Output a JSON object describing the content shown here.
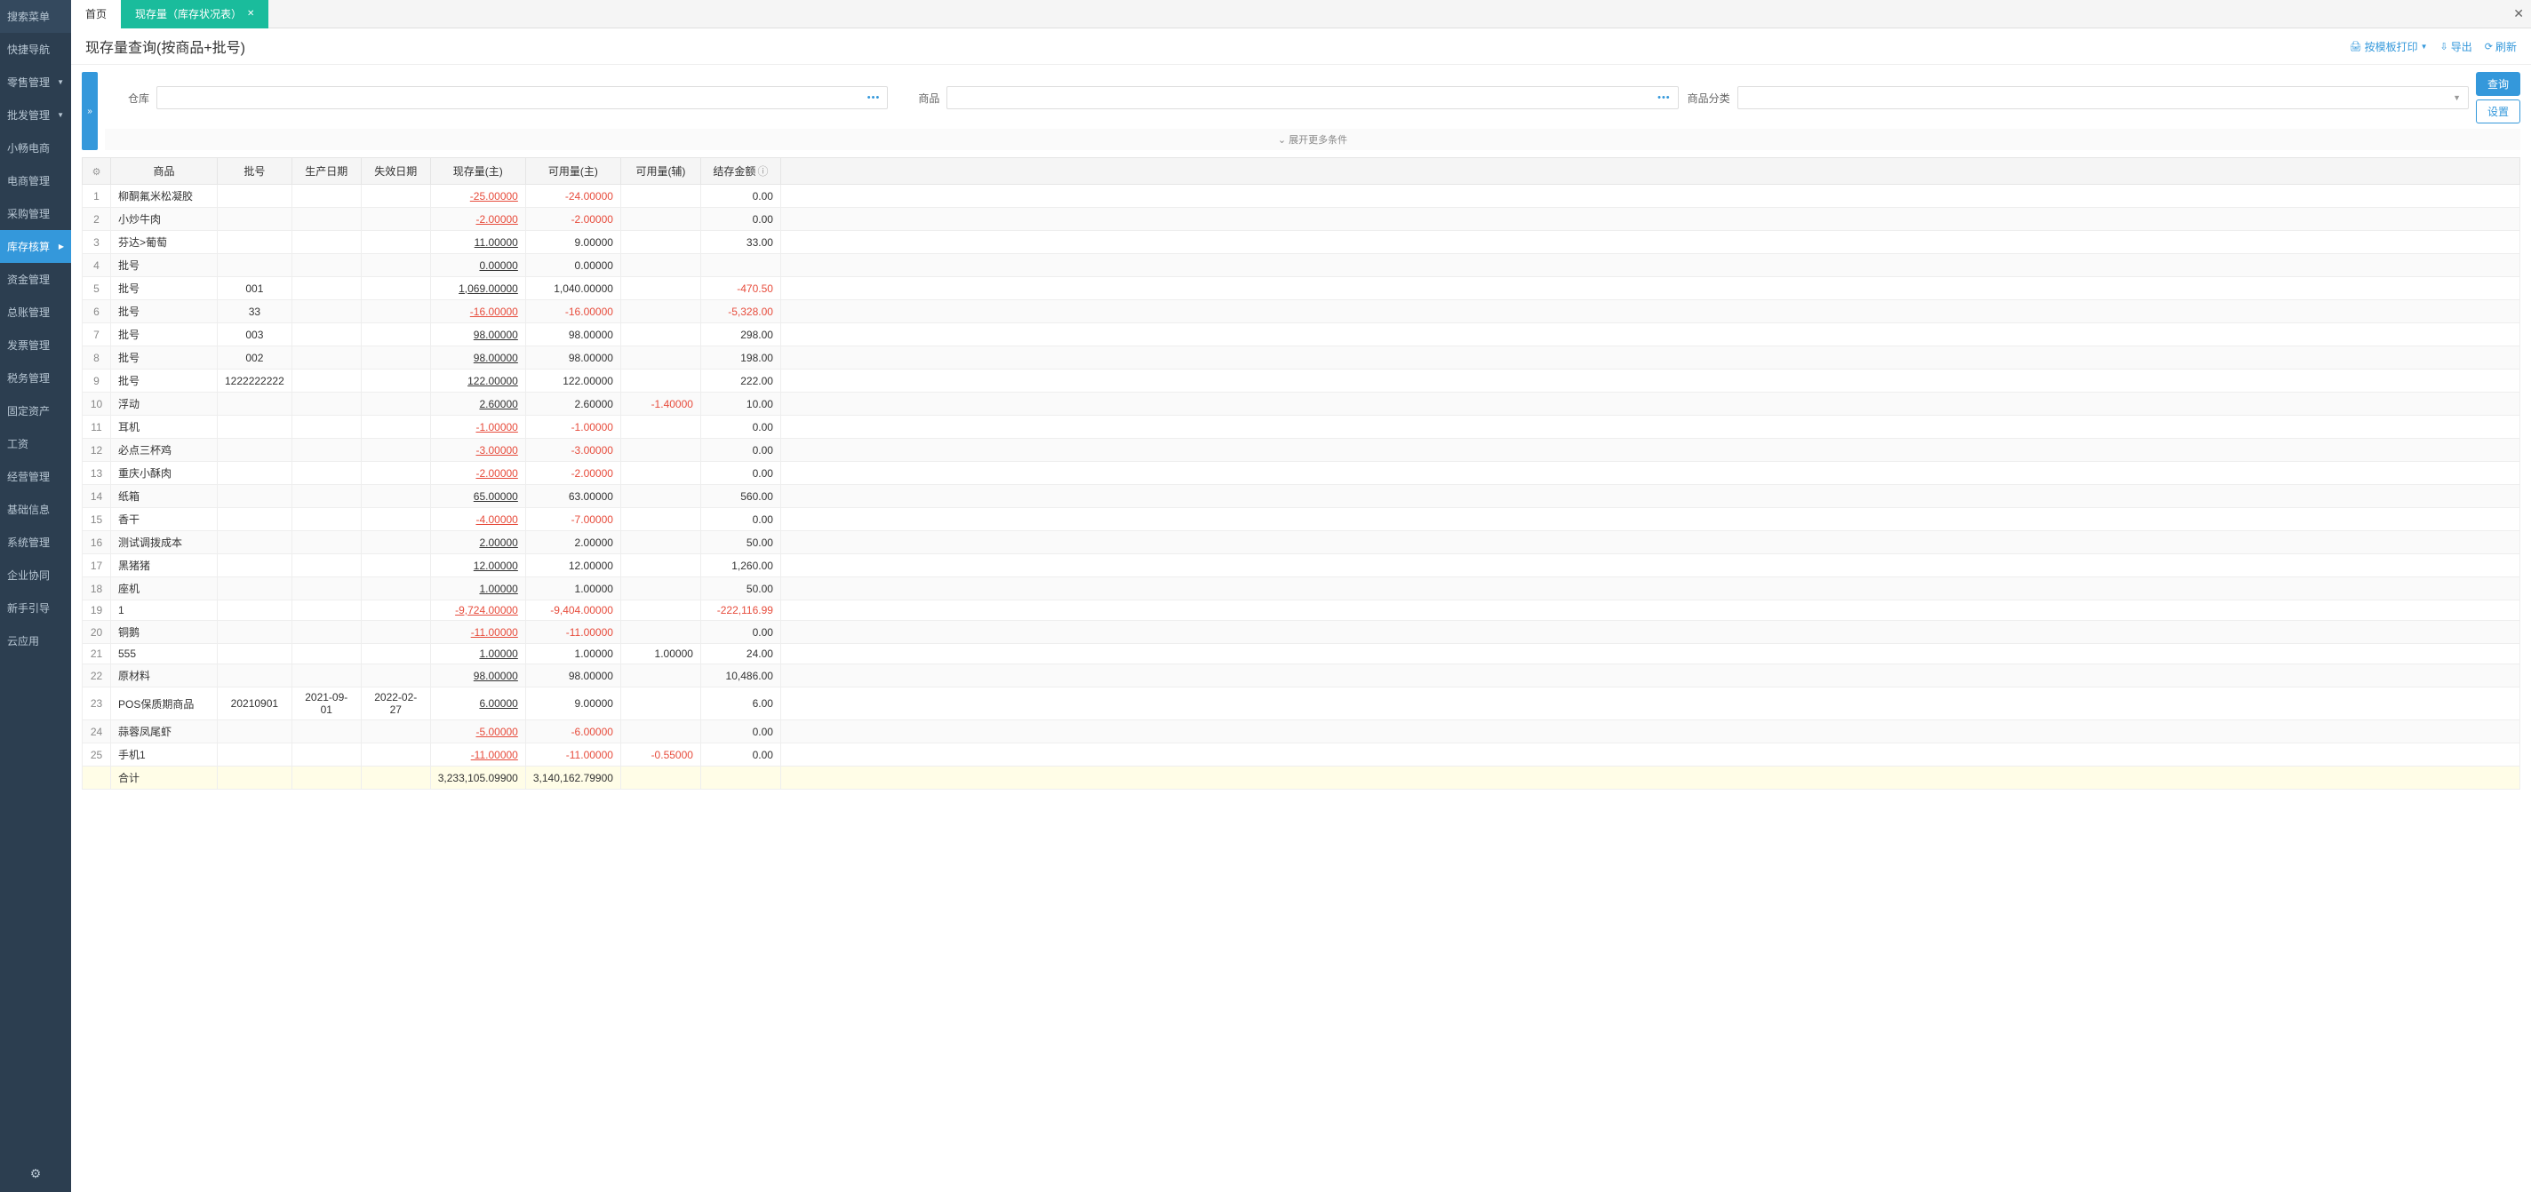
{
  "sidebar": {
    "items": [
      {
        "label": "搜索菜单",
        "hasChevron": false
      },
      {
        "label": "快捷导航",
        "hasChevron": false
      },
      {
        "label": "零售管理",
        "hasChevron": true
      },
      {
        "label": "批发管理",
        "hasChevron": true
      },
      {
        "label": "小畅电商",
        "hasChevron": false
      },
      {
        "label": "电商管理",
        "hasChevron": false
      },
      {
        "label": "采购管理",
        "hasChevron": false
      },
      {
        "label": "库存核算",
        "hasChevron": false,
        "active": true
      },
      {
        "label": "资金管理",
        "hasChevron": false
      },
      {
        "label": "总账管理",
        "hasChevron": false
      },
      {
        "label": "发票管理",
        "hasChevron": false
      },
      {
        "label": "税务管理",
        "hasChevron": false
      },
      {
        "label": "固定资产",
        "hasChevron": false
      },
      {
        "label": "工资",
        "hasChevron": false
      },
      {
        "label": "经营管理",
        "hasChevron": false
      },
      {
        "label": "基础信息",
        "hasChevron": false
      },
      {
        "label": "系统管理",
        "hasChevron": false
      },
      {
        "label": "企业协同",
        "hasChevron": false
      },
      {
        "label": "新手引导",
        "hasChevron": false
      },
      {
        "label": "云应用",
        "hasChevron": false
      }
    ]
  },
  "tabs": {
    "home": "首页",
    "active": "现存量（库存状况表）"
  },
  "page": {
    "title": "现存量查询(按商品+批号)",
    "actions": {
      "print": "按模板打印",
      "export": "导出",
      "refresh": "刷新"
    }
  },
  "filters": {
    "warehouse": "仓库",
    "product": "商品",
    "category": "商品分类",
    "query": "查询",
    "settings": "设置",
    "expand": "展开更多条件"
  },
  "table": {
    "headers": {
      "product": "商品",
      "batch": "批号",
      "prodDate": "生产日期",
      "expDate": "失效日期",
      "stockMain": "现存量(主)",
      "availMain": "可用量(主)",
      "availAux": "可用量(辅)",
      "balance": "结存金额"
    },
    "rows": [
      {
        "idx": 1,
        "name": "柳酮氟米松凝胶",
        "batch": "",
        "pd": "",
        "ed": "",
        "stock": "-25.00000",
        "sNeg": true,
        "avail": "-24.00000",
        "aNeg": true,
        "aux": "",
        "bal": "0.00"
      },
      {
        "idx": 2,
        "name": "小炒牛肉",
        "batch": "",
        "pd": "",
        "ed": "",
        "stock": "-2.00000",
        "sNeg": true,
        "avail": "-2.00000",
        "aNeg": true,
        "aux": "",
        "bal": "0.00"
      },
      {
        "idx": 3,
        "name": "芬达>葡萄",
        "batch": "",
        "pd": "",
        "ed": "",
        "stock": "11.00000",
        "avail": "9.00000",
        "aux": "",
        "bal": "33.00"
      },
      {
        "idx": 4,
        "name": "批号",
        "batch": "",
        "pd": "",
        "ed": "",
        "stock": "0.00000",
        "avail": "0.00000",
        "aux": "",
        "bal": ""
      },
      {
        "idx": 5,
        "name": "批号",
        "batch": "001",
        "pd": "",
        "ed": "",
        "stock": "1,069.00000",
        "avail": "1,040.00000",
        "aux": "",
        "bal": "-470.50",
        "bNeg": true
      },
      {
        "idx": 6,
        "name": "批号",
        "batch": "33",
        "pd": "",
        "ed": "",
        "stock": "-16.00000",
        "sNeg": true,
        "avail": "-16.00000",
        "aNeg": true,
        "aux": "",
        "bal": "-5,328.00",
        "bNeg": true
      },
      {
        "idx": 7,
        "name": "批号",
        "batch": "003",
        "pd": "",
        "ed": "",
        "stock": "98.00000",
        "avail": "98.00000",
        "aux": "",
        "bal": "298.00"
      },
      {
        "idx": 8,
        "name": "批号",
        "batch": "002",
        "pd": "",
        "ed": "",
        "stock": "98.00000",
        "avail": "98.00000",
        "aux": "",
        "bal": "198.00"
      },
      {
        "idx": 9,
        "name": "批号",
        "batch": "1222222222",
        "pd": "",
        "ed": "",
        "stock": "122.00000",
        "avail": "122.00000",
        "aux": "",
        "bal": "222.00"
      },
      {
        "idx": 10,
        "name": "浮动",
        "batch": "",
        "pd": "",
        "ed": "",
        "stock": "2.60000",
        "avail": "2.60000",
        "aux": "-1.40000",
        "xNeg": true,
        "bal": "10.00"
      },
      {
        "idx": 11,
        "name": "耳机",
        "batch": "",
        "pd": "",
        "ed": "",
        "stock": "-1.00000",
        "sNeg": true,
        "avail": "-1.00000",
        "aNeg": true,
        "aux": "",
        "bal": "0.00"
      },
      {
        "idx": 12,
        "name": "必点三杯鸡",
        "batch": "",
        "pd": "",
        "ed": "",
        "stock": "-3.00000",
        "sNeg": true,
        "avail": "-3.00000",
        "aNeg": true,
        "aux": "",
        "bal": "0.00"
      },
      {
        "idx": 13,
        "name": "重庆小酥肉",
        "batch": "",
        "pd": "",
        "ed": "",
        "stock": "-2.00000",
        "sNeg": true,
        "avail": "-2.00000",
        "aNeg": true,
        "aux": "",
        "bal": "0.00"
      },
      {
        "idx": 14,
        "name": "纸箱",
        "batch": "",
        "pd": "",
        "ed": "",
        "stock": "65.00000",
        "avail": "63.00000",
        "aux": "",
        "bal": "560.00"
      },
      {
        "idx": 15,
        "name": "香干",
        "batch": "",
        "pd": "",
        "ed": "",
        "stock": "-4.00000",
        "sNeg": true,
        "avail": "-7.00000",
        "aNeg": true,
        "aux": "",
        "bal": "0.00"
      },
      {
        "idx": 16,
        "name": "测试调拨成本",
        "batch": "",
        "pd": "",
        "ed": "",
        "stock": "2.00000",
        "avail": "2.00000",
        "aux": "",
        "bal": "50.00"
      },
      {
        "idx": 17,
        "name": "黑猪猪",
        "batch": "",
        "pd": "",
        "ed": "",
        "stock": "12.00000",
        "avail": "12.00000",
        "aux": "",
        "bal": "1,260.00"
      },
      {
        "idx": 18,
        "name": "座机",
        "batch": "",
        "pd": "",
        "ed": "",
        "stock": "1.00000",
        "avail": "1.00000",
        "aux": "",
        "bal": "50.00"
      },
      {
        "idx": 19,
        "name": "1",
        "batch": "",
        "pd": "",
        "ed": "",
        "stock": "-9,724.00000",
        "sNeg": true,
        "avail": "-9,404.00000",
        "aNeg": true,
        "aux": "",
        "bal": "-222,116.99",
        "bNeg": true
      },
      {
        "idx": 20,
        "name": "铜鹅",
        "batch": "",
        "pd": "",
        "ed": "",
        "stock": "-11.00000",
        "sNeg": true,
        "avail": "-11.00000",
        "aNeg": true,
        "aux": "",
        "bal": "0.00"
      },
      {
        "idx": 21,
        "name": "555",
        "batch": "",
        "pd": "",
        "ed": "",
        "stock": "1.00000",
        "avail": "1.00000",
        "aux": "1.00000",
        "bal": "24.00"
      },
      {
        "idx": 22,
        "name": "原材料",
        "batch": "",
        "pd": "",
        "ed": "",
        "stock": "98.00000",
        "avail": "98.00000",
        "aux": "",
        "bal": "10,486.00"
      },
      {
        "idx": 23,
        "name": "POS保质期商品",
        "batch": "20210901",
        "pd": "2021-09-01",
        "ed": "2022-02-27",
        "stock": "6.00000",
        "avail": "9.00000",
        "aux": "",
        "bal": "6.00"
      },
      {
        "idx": 24,
        "name": "蒜蓉凤尾虾",
        "batch": "",
        "pd": "",
        "ed": "",
        "stock": "-5.00000",
        "sNeg": true,
        "avail": "-6.00000",
        "aNeg": true,
        "aux": "",
        "bal": "0.00"
      },
      {
        "idx": 25,
        "name": "手机1",
        "batch": "",
        "pd": "",
        "ed": "",
        "stock": "-11.00000",
        "sNeg": true,
        "avail": "-11.00000",
        "aNeg": true,
        "aux": "-0.55000",
        "xNeg": true,
        "bal": "0.00"
      }
    ],
    "footer": {
      "label": "合计",
      "stock": "3,233,105.09900",
      "avail": "3,140,162.79900"
    }
  }
}
